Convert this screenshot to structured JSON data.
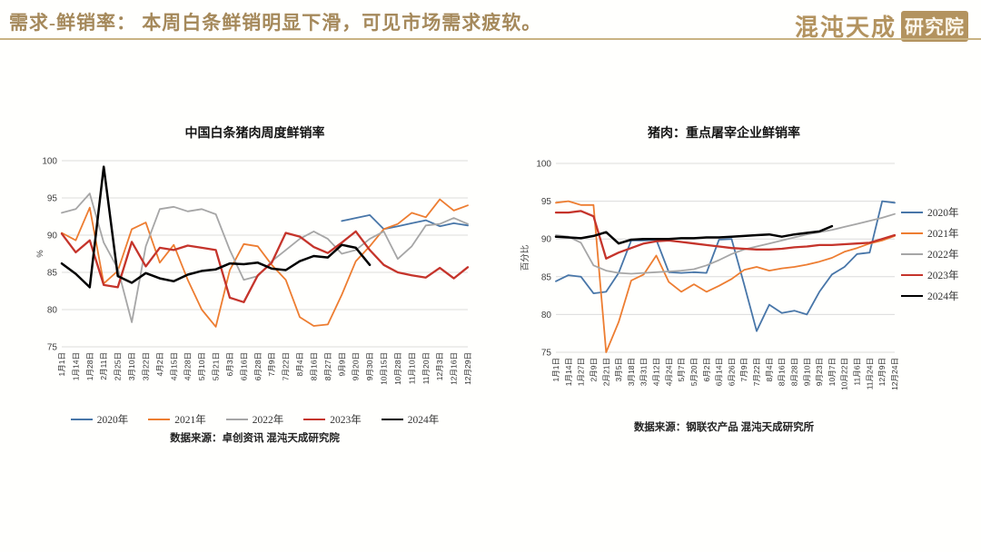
{
  "header": {
    "title": "需求-鲜销率：  本周白条鲜销明显下滑，可见市场需求疲软。",
    "logo_text": "混沌天成",
    "logo_seal": "研究院",
    "accent_color": "#A5895B"
  },
  "chart_data": [
    {
      "type": "line",
      "title": "中国白条猪肉周度鲜销率",
      "ylabel": "%",
      "xlabel": "",
      "source": "数据来源：卓创资讯 混沌天成研究院",
      "legend_position": "bottom",
      "grid": true,
      "ylim": [
        75,
        100
      ],
      "yticks": [
        75,
        80,
        85,
        90,
        95,
        100
      ],
      "categories": [
        "1月1日",
        "1月14日",
        "1月28日",
        "2月11日",
        "2月25日",
        "3月10日",
        "3月22日",
        "4月2日",
        "4月15日",
        "4月28日",
        "5月10日",
        "5月21日",
        "6月3日",
        "6月16日",
        "6月28日",
        "7月9日",
        "7月22日",
        "8月4日",
        "8月16日",
        "8月27日",
        "9月9日",
        "9月20日",
        "9月30日",
        "10月15日",
        "10月28日",
        "11月10日",
        "11月20日",
        "12月3日",
        "12月16日",
        "12月29日"
      ],
      "series": [
        {
          "name": "2020年",
          "color": "#4876A8",
          "width": 1.8,
          "values": [
            null,
            null,
            null,
            null,
            null,
            null,
            null,
            null,
            null,
            null,
            null,
            null,
            null,
            null,
            null,
            null,
            null,
            null,
            null,
            null,
            91.9,
            92.3,
            92.7,
            90.8,
            91.2,
            91.6,
            92.0,
            91.2,
            91.6,
            91.3
          ]
        },
        {
          "name": "2021年",
          "color": "#ED7D31",
          "width": 1.8,
          "values": [
            90.3,
            89.3,
            93.7,
            83.5,
            85.2,
            90.8,
            91.7,
            86.3,
            88.7,
            84.0,
            80.0,
            77.7,
            85.3,
            88.8,
            88.5,
            86.0,
            84.0,
            79.0,
            77.8,
            78.0,
            82.0,
            86.5,
            88.5,
            90.8,
            91.5,
            93.0,
            92.4,
            94.8,
            93.3,
            94.0
          ]
        },
        {
          "name": "2022年",
          "color": "#A6A6A6",
          "width": 1.8,
          "values": [
            93.0,
            93.5,
            95.6,
            89.0,
            85.5,
            78.3,
            88.5,
            93.5,
            93.8,
            93.2,
            93.5,
            92.8,
            88.0,
            84.0,
            84.5,
            86.5,
            88.0,
            89.5,
            90.5,
            89.5,
            87.5,
            88.0,
            89.5,
            90.5,
            86.8,
            88.5,
            91.3,
            91.5,
            92.3,
            91.5
          ]
        },
        {
          "name": "2023年",
          "color": "#C5342B",
          "width": 2.3,
          "values": [
            90.2,
            87.7,
            89.3,
            83.3,
            83.0,
            89.1,
            85.8,
            88.3,
            88.0,
            88.6,
            88.3,
            88.0,
            81.6,
            81.0,
            84.6,
            86.3,
            90.3,
            89.8,
            88.4,
            87.6,
            89.0,
            90.5,
            88.0,
            86.0,
            85.0,
            84.6,
            84.3,
            85.6,
            84.2,
            85.7
          ]
        },
        {
          "name": "2024年",
          "color": "#000000",
          "width": 2.5,
          "values": [
            86.2,
            84.8,
            83.0,
            99.2,
            84.5,
            83.6,
            84.9,
            84.2,
            83.8,
            84.7,
            85.2,
            85.4,
            86.2,
            86.1,
            86.3,
            85.5,
            85.3,
            86.5,
            87.2,
            87.0,
            88.7,
            88.3,
            86.0,
            null,
            null,
            null,
            null,
            null,
            null,
            null
          ]
        }
      ]
    },
    {
      "type": "line",
      "title": "猪肉：重点屠宰企业鲜销率",
      "ylabel": "百分比",
      "xlabel": "",
      "source": "数据来源：钢联农产品 混沌天成研究所",
      "legend_position": "right",
      "grid": true,
      "ylim": [
        75,
        100
      ],
      "yticks": [
        75,
        80,
        85,
        90,
        95,
        100
      ],
      "categories": [
        "1月1日",
        "1月14日",
        "1月27日",
        "2月9日",
        "2月21日",
        "3月5日",
        "3月18日",
        "3月31日",
        "4月12日",
        "4月24日",
        "5月7日",
        "5月20日",
        "6月2日",
        "6月14日",
        "6月26日",
        "7月9日",
        "7月22日",
        "8月4日",
        "8月16日",
        "8月28日",
        "9月10日",
        "9月23日",
        "10月7日",
        "10月22日",
        "11月6日",
        "11月24日",
        "12月9日",
        "12月24日"
      ],
      "series": [
        {
          "name": "2020年",
          "color": "#4876A8",
          "width": 1.8,
          "values": [
            84.4,
            85.2,
            85.0,
            82.8,
            83.0,
            85.5,
            89.8,
            89.8,
            89.9,
            85.6,
            85.5,
            85.6,
            85.5,
            89.9,
            90.0,
            84.0,
            77.8,
            81.3,
            80.2,
            80.5,
            80.0,
            83.0,
            85.3,
            86.3,
            88.0,
            88.2,
            95.0,
            94.8
          ]
        },
        {
          "name": "2021年",
          "color": "#ED7D31",
          "width": 1.8,
          "values": [
            94.8,
            95.0,
            94.5,
            94.5,
            74.6,
            79.0,
            84.5,
            85.3,
            87.8,
            84.3,
            83.0,
            84.0,
            83.0,
            83.8,
            84.7,
            85.9,
            86.3,
            85.8,
            86.1,
            86.3,
            86.6,
            87.0,
            87.5,
            88.3,
            88.8,
            89.4,
            89.8,
            90.4
          ]
        },
        {
          "name": "2022年",
          "color": "#A6A6A6",
          "width": 1.8,
          "values": [
            90.5,
            90.3,
            89.5,
            86.5,
            85.8,
            85.5,
            85.4,
            85.5,
            85.6,
            85.7,
            85.8,
            86.0,
            86.5,
            87.2,
            88.0,
            88.6,
            89.0,
            89.4,
            89.8,
            90.2,
            90.6,
            90.9,
            91.2,
            91.6,
            92.0,
            92.4,
            92.8,
            93.3
          ]
        },
        {
          "name": "2023年",
          "color": "#C5342B",
          "width": 2.3,
          "values": [
            93.5,
            93.5,
            93.7,
            93.0,
            87.4,
            88.2,
            88.8,
            89.4,
            89.7,
            89.8,
            89.6,
            89.4,
            89.2,
            89.0,
            88.8,
            88.7,
            88.6,
            88.6,
            88.7,
            88.9,
            89.0,
            89.2,
            89.2,
            89.3,
            89.4,
            89.5,
            90.0,
            90.5
          ]
        },
        {
          "name": "2024年",
          "color": "#000000",
          "width": 2.5,
          "values": [
            90.3,
            90.2,
            90.1,
            90.4,
            90.9,
            89.4,
            89.9,
            90.0,
            90.0,
            90.0,
            90.1,
            90.1,
            90.2,
            90.2,
            90.3,
            90.4,
            90.5,
            90.6,
            90.3,
            90.6,
            90.8,
            91.0,
            91.7,
            null,
            null,
            null,
            null,
            null
          ]
        }
      ]
    }
  ]
}
